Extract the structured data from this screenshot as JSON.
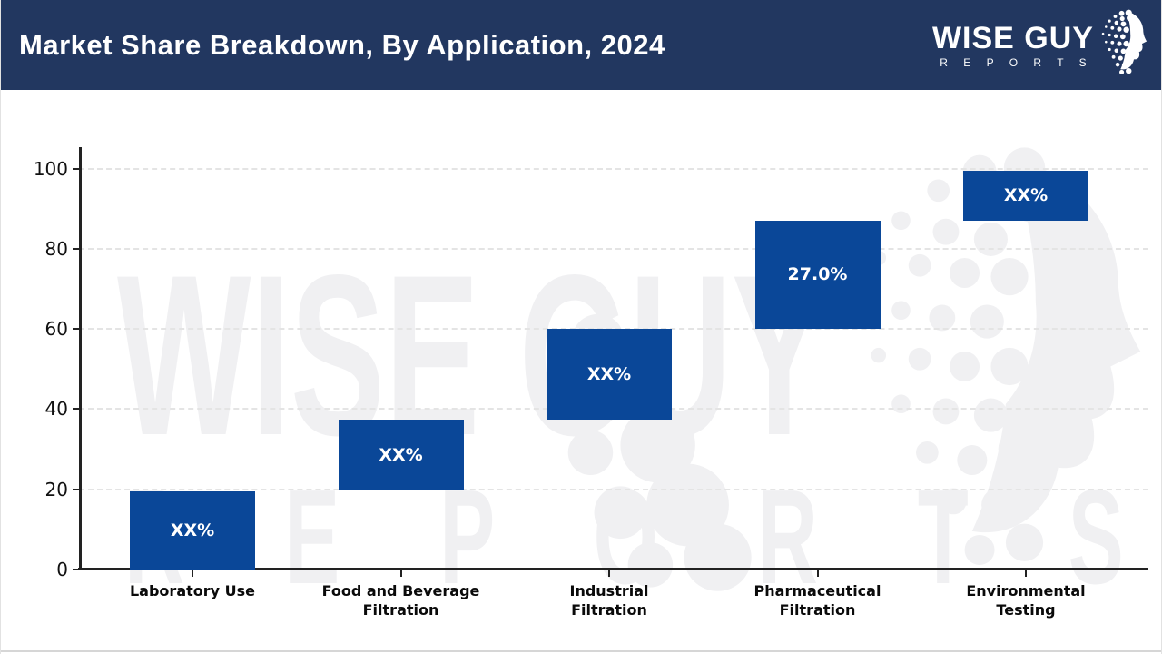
{
  "header": {
    "title": "Market Share Breakdown, By Application, 2024",
    "logo": {
      "name": "WISE GUY",
      "sub": "R E P O R T S"
    }
  },
  "watermark": {
    "name": "WISE GUY",
    "sub": "R E P O R T S"
  },
  "colors": {
    "header_bg": "#223760",
    "bar": "#0a4798",
    "bar_label": "#ffffff",
    "axis": "#222222",
    "gridline": "#e4e4e4",
    "watermark": "#f0f0f2",
    "tick_text": "#111111"
  },
  "chart_data": {
    "type": "bar",
    "subtype": "waterfall-floating-bars",
    "title": "Market Share Breakdown, By Application, 2024",
    "categories": [
      "Laboratory Use",
      "Food and Beverage Filtration",
      "Industrial Filtration",
      "Pharmaceutical Filtration",
      "Environmental Testing"
    ],
    "category_lines": [
      [
        "Laboratory Use"
      ],
      [
        "Food and Beverage",
        "Filtration"
      ],
      [
        "Industrial",
        "Filtration"
      ],
      [
        "Pharmaceutical",
        "Filtration"
      ],
      [
        "Environmental",
        "Testing"
      ]
    ],
    "segments": [
      {
        "category": "Laboratory Use",
        "start": 0,
        "end": 19.5,
        "value_label": "XX%"
      },
      {
        "category": "Food and Beverage Filtration",
        "start": 19.8,
        "end": 37.4,
        "value_label": "XX%"
      },
      {
        "category": "Industrial Filtration",
        "start": 37.4,
        "end": 60,
        "value_label": "XX%"
      },
      {
        "category": "Pharmaceutical Filtration",
        "start": 60,
        "end": 87,
        "value_label": "27.0%"
      },
      {
        "category": "Environmental Testing",
        "start": 87,
        "end": 99.5,
        "value_label": "XX%"
      }
    ],
    "y_ticks": [
      0,
      20,
      40,
      60,
      80,
      100
    ],
    "ylim": [
      0,
      105
    ],
    "xlabel": "",
    "ylabel": "",
    "grid": "horizontal-dashed",
    "legend": "none"
  }
}
